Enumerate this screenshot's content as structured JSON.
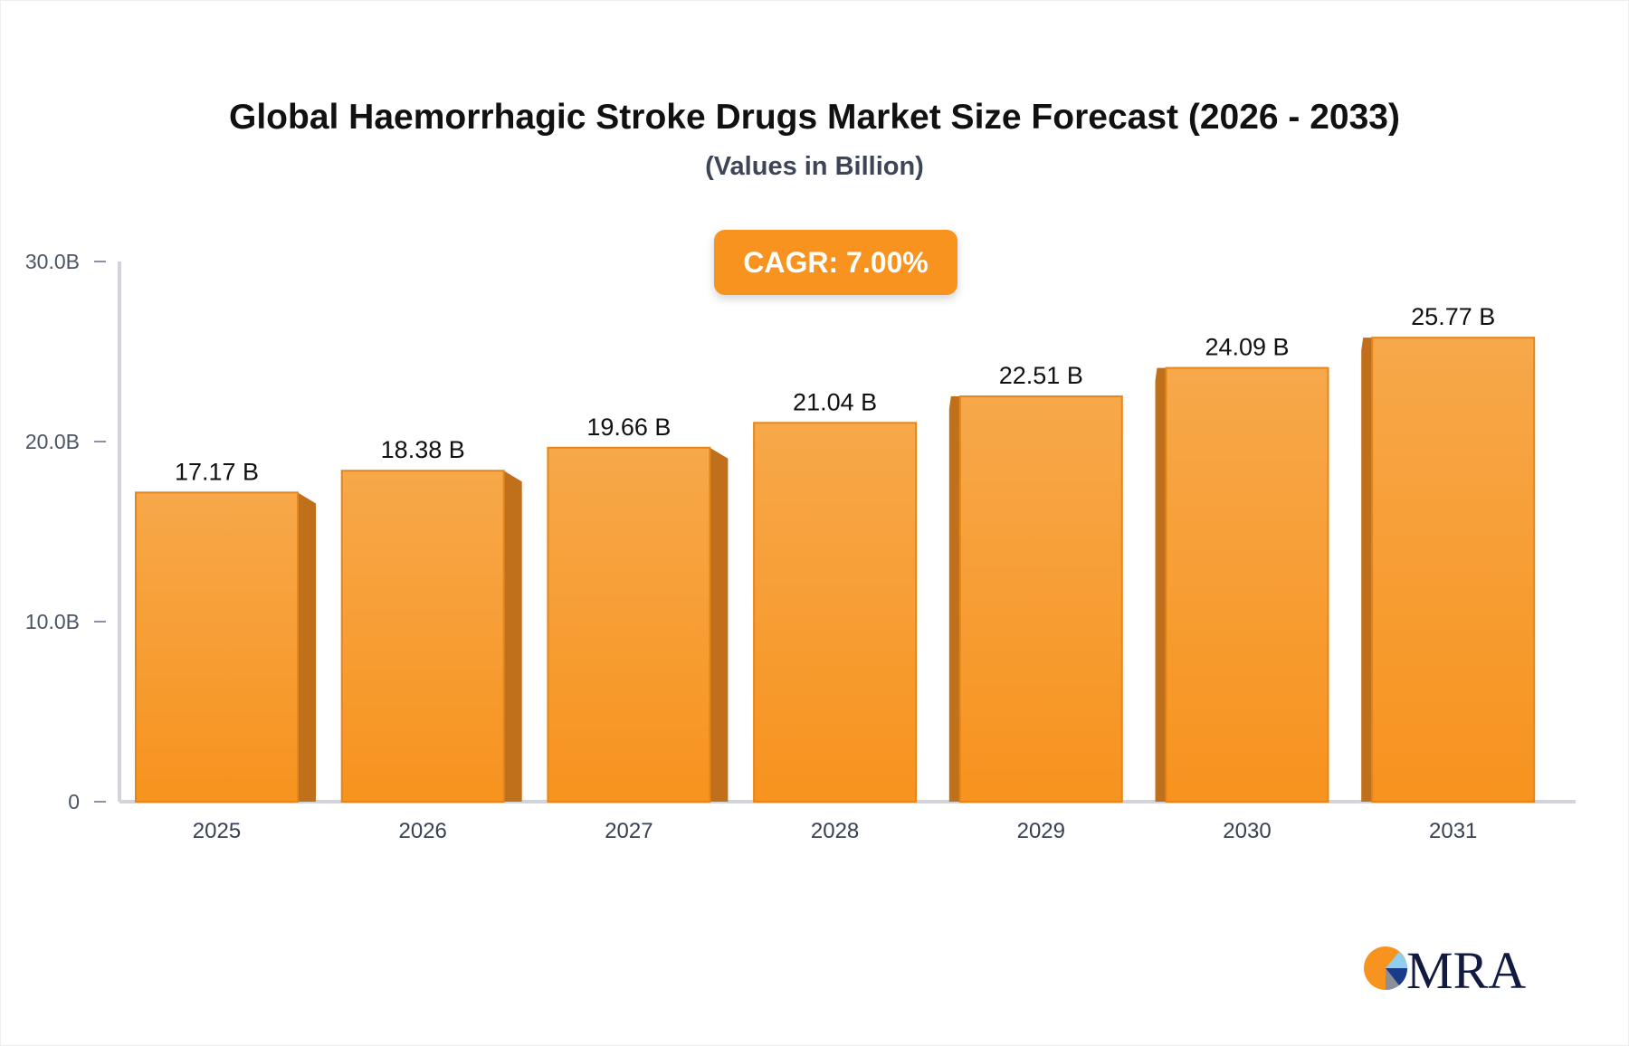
{
  "chart_data": {
    "type": "bar",
    "title": "Global Haemorrhagic Stroke Drugs Market Size Forecast (2026 - 2033)",
    "subtitle": "(Values in Billion)",
    "annotation": "CAGR: 7.00%",
    "categories": [
      "2025",
      "2026",
      "2027",
      "2028",
      "2029",
      "2030",
      "2031"
    ],
    "values": [
      17.17,
      18.38,
      19.66,
      21.04,
      22.51,
      24.09,
      25.77
    ],
    "data_labels": [
      "17.17 B",
      "18.38 B",
      "19.66 B",
      "21.04 B",
      "22.51 B",
      "24.09 B",
      "25.77 B"
    ],
    "ylim": [
      0,
      30
    ],
    "yticks": [
      0,
      10,
      20,
      30
    ],
    "ytick_labels": [
      "0",
      "10.0B",
      "20.0B",
      "30.0B"
    ],
    "grid": false,
    "bar_color": "#f7931e",
    "bar_side_color": "#c0701a"
  },
  "logo": {
    "text": "MRA"
  }
}
